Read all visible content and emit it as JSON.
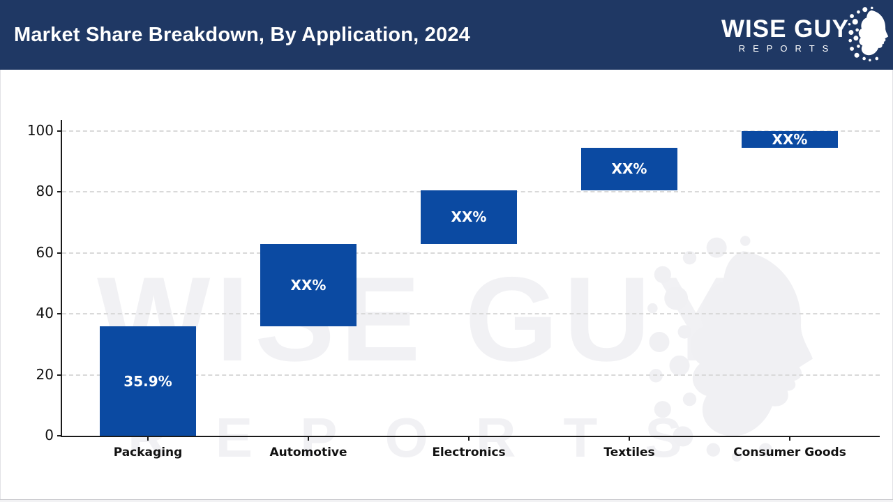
{
  "header": {
    "title": "Market Share Breakdown, By Application, 2024",
    "logo": {
      "line1": "WISE GUY",
      "line2": "REPORTS"
    }
  },
  "watermark": {
    "line1": "WISE GUY",
    "line2": "REPORTS"
  },
  "colors": {
    "header_bg": "#1f3864",
    "bar": "#0b4aa2",
    "bar_label": "#ffffff",
    "axis": "#1a1a1a",
    "gridline": "#d9d9d9",
    "watermark": "#f1f1f4"
  },
  "chart_data": {
    "type": "bar",
    "subtype": "waterfall",
    "title": "Market Share Breakdown, By Application, 2024",
    "xlabel": "",
    "ylabel": "",
    "ylim": [
      0,
      105
    ],
    "yticks": [
      0,
      20,
      40,
      60,
      80,
      100
    ],
    "grid": "horizontal-dashed",
    "legend": "none",
    "categories": [
      "Packaging",
      "Automotive",
      "Electronics",
      "Textiles",
      "Consumer Goods"
    ],
    "segments": [
      {
        "category": "Packaging",
        "start": 0,
        "end": 35.9,
        "label": "35.9%"
      },
      {
        "category": "Automotive",
        "start": 35.9,
        "end": 62.9,
        "label": "XX%"
      },
      {
        "category": "Electronics",
        "start": 62.9,
        "end": 80.6,
        "label": "XX%"
      },
      {
        "category": "Textiles",
        "start": 80.6,
        "end": 94.5,
        "label": "XX%"
      },
      {
        "category": "Consumer Goods",
        "start": 94.5,
        "end": 100,
        "label": "XX%"
      }
    ]
  }
}
